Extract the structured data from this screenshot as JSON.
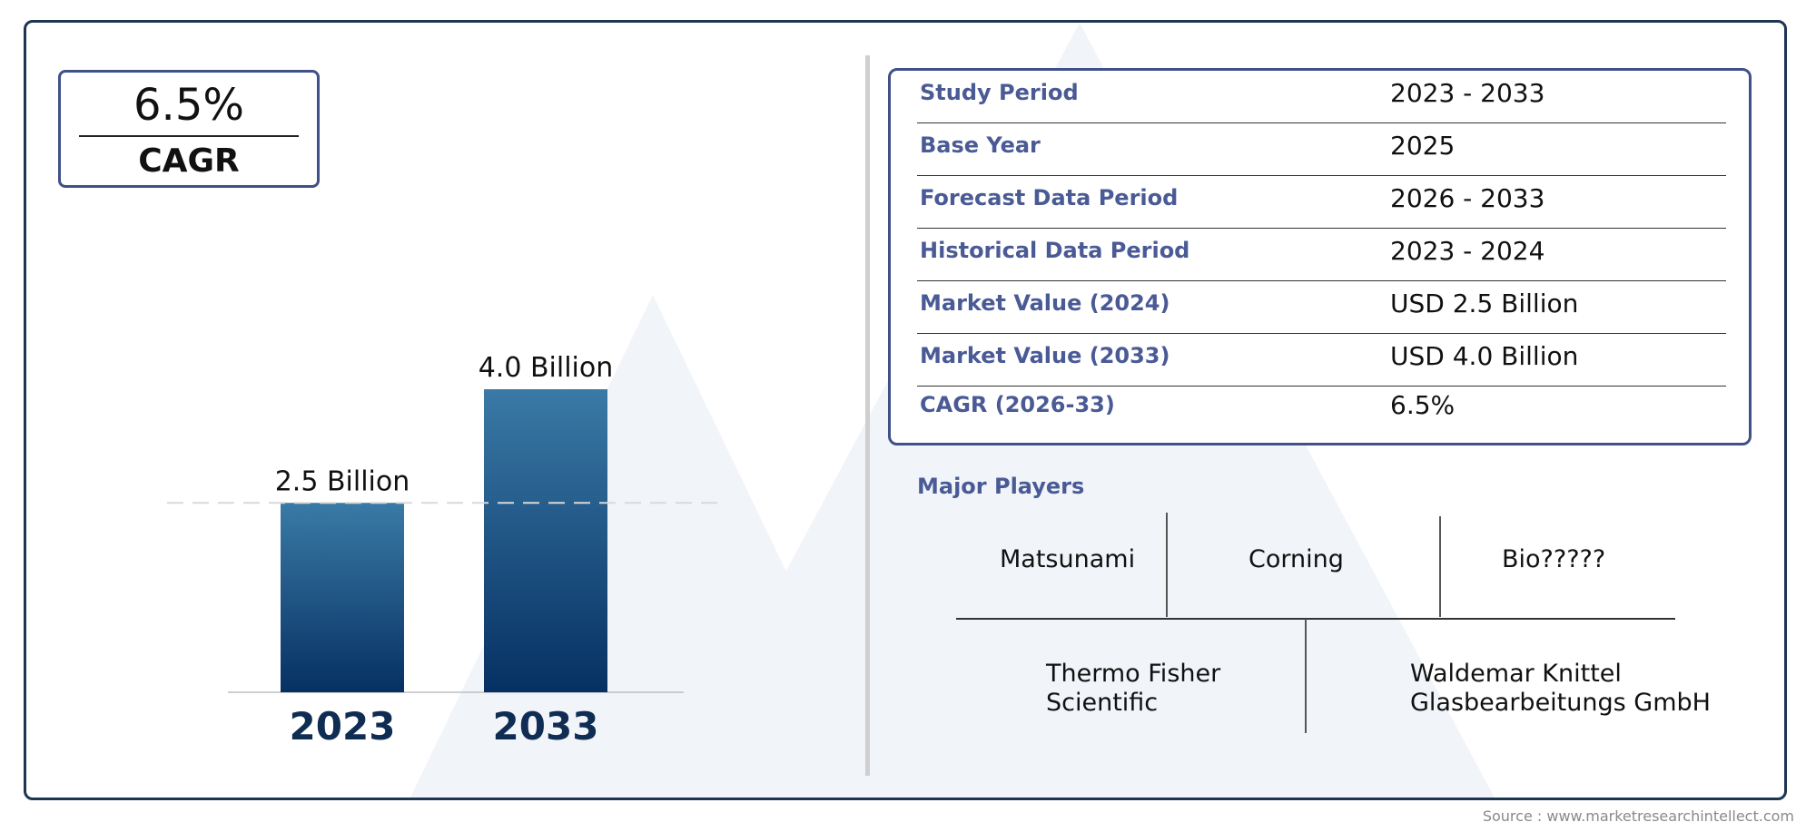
{
  "cagr_box": {
    "value": "6.5%",
    "label": "CAGR"
  },
  "chart_data": {
    "type": "bar",
    "categories": [
      "2023",
      "2033"
    ],
    "values": [
      2.5,
      4.0
    ],
    "value_labels": [
      "2.5 Billion",
      "4.0 Billion"
    ],
    "unit": "Billion",
    "colors": {
      "bar_top": "#3a7aa6",
      "bar_bottom": "#063063",
      "year_text": "#0f2c52",
      "reference_line": "#d9d9d9"
    },
    "grid": false,
    "reference_line_at": 2.5,
    "title": "",
    "xlabel": "",
    "ylabel": ""
  },
  "info_table": {
    "rows": [
      {
        "key": "Study Period",
        "value": "2023 - 2033"
      },
      {
        "key": "Base Year",
        "value": "2025"
      },
      {
        "key": "Forecast Data Period",
        "value": "2026 - 2033"
      },
      {
        "key": "Historical Data Period",
        "value": "2023 - 2024"
      },
      {
        "key": "Market Value (2024)",
        "value": "USD 2.5 Billion"
      },
      {
        "key": "Market Value (2033)",
        "value": "USD 4.0 Billion"
      },
      {
        "key": "CAGR (2026-33)",
        "value": "6.5%"
      }
    ]
  },
  "players": {
    "title": "Major Players",
    "top_row": [
      "Matsunami",
      "Corning",
      "Bio?????"
    ],
    "bottom_row": [
      {
        "line1": "Thermo Fisher",
        "line2": "Scientific"
      },
      {
        "line1": "Waldemar Knittel",
        "line2": "Glasbearbeitungs GmbH"
      }
    ]
  },
  "source": "Source : www.marketresearchintellect.com",
  "colors": {
    "frame_border": "#1c3550",
    "accent_text": "#4a5a95",
    "box_border": "#3f5187",
    "watermark": "#eef2f8"
  }
}
